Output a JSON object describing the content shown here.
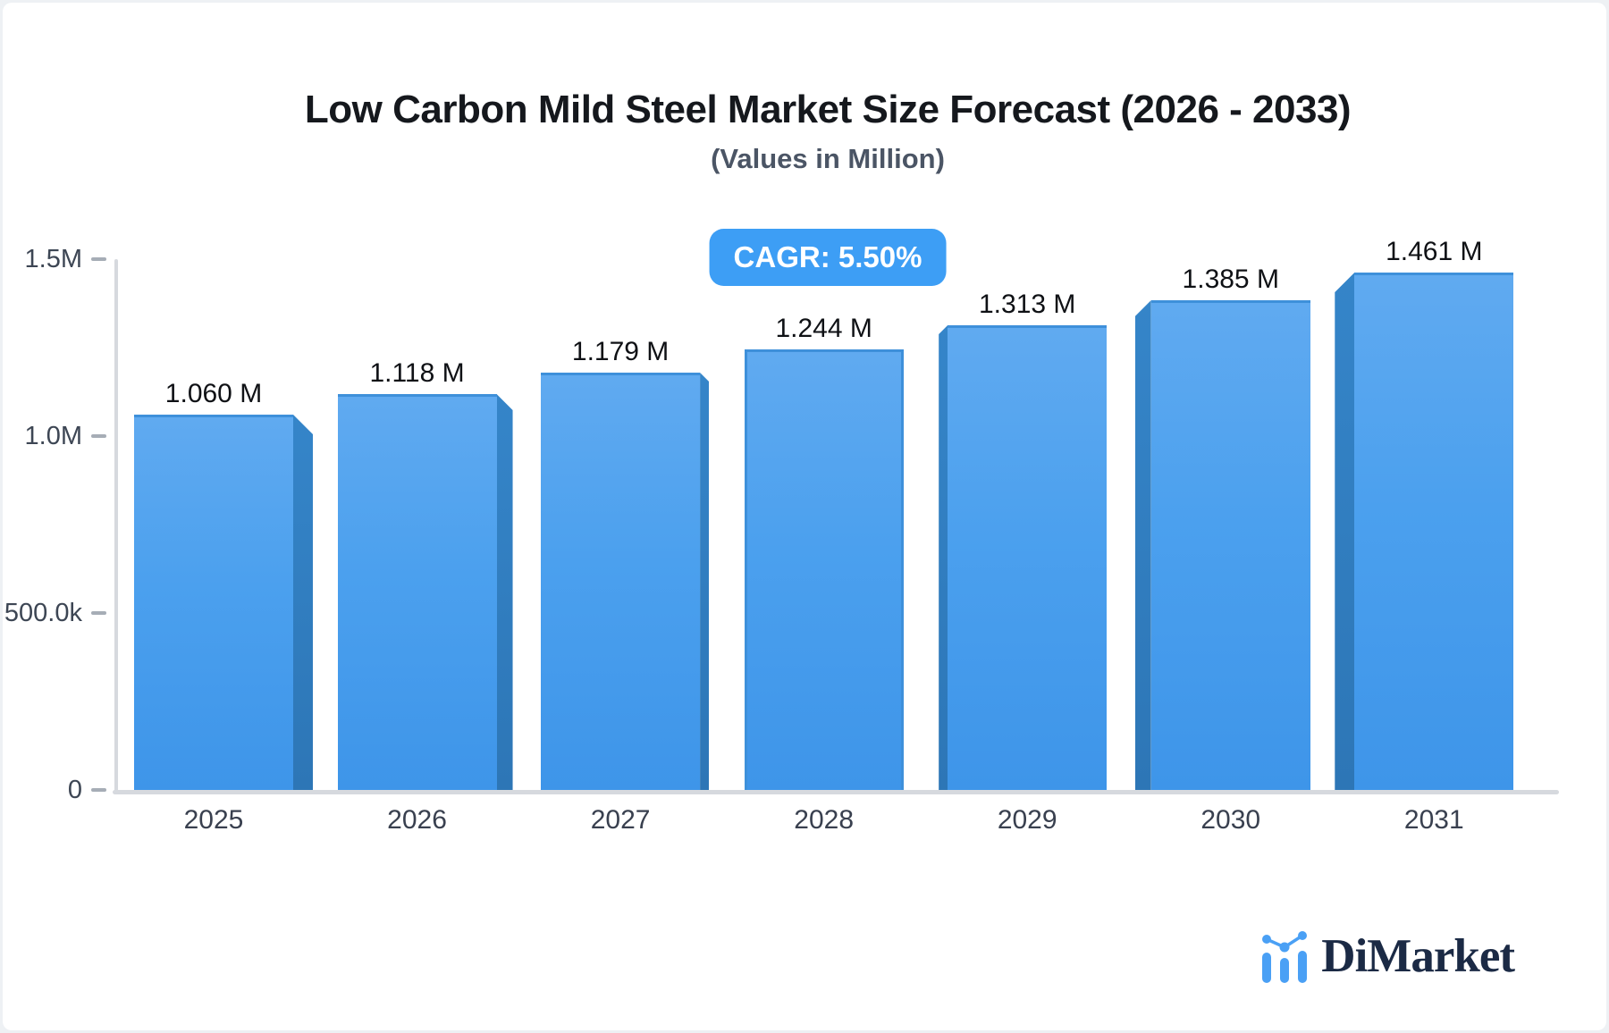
{
  "header": {
    "title": "Low Carbon Mild Steel Market Size Forecast (2026 - 2033)",
    "subtitle": "(Values in Million)"
  },
  "badge": {
    "label": "CAGR: 5.50%",
    "color": "#3d9ef5"
  },
  "chart_data": {
    "type": "bar",
    "title": "Low Carbon Mild Steel Market Size Forecast (2026 - 2033)",
    "subtitle": "(Values in Million)",
    "xlabel": "",
    "ylabel": "",
    "categories": [
      "2025",
      "2026",
      "2027",
      "2028",
      "2029",
      "2030",
      "2031"
    ],
    "values": [
      1060000,
      1118000,
      1179000,
      1244000,
      1313000,
      1385000,
      1461000
    ],
    "value_labels": [
      "1.060 M",
      "1.118 M",
      "1.179 M",
      "1.244 M",
      "1.313 M",
      "1.385 M",
      "1.461 M"
    ],
    "y_ticks": [
      {
        "label": "1.5M",
        "value": 1500000
      },
      {
        "label": "1.0M",
        "value": 1000000
      },
      {
        "label": "500.0k",
        "value": 500000
      },
      {
        "label": "0",
        "value": 0
      }
    ],
    "ylim": [
      0,
      1500000
    ],
    "grid": false,
    "legend": false,
    "style": "3d-perspective-bars",
    "bar_color_top": "#60aaf0",
    "bar_color_bottom": "#3e95e9",
    "bar_side_color": "#2d76b6",
    "axis_color": "#d6d9de"
  },
  "branding": {
    "logo_text": "DiMarket",
    "logo_icon": "bar-chart-trendline-icon",
    "logo_text_color": "#1b2a45",
    "logo_accent_color": "#4aa0f5"
  }
}
